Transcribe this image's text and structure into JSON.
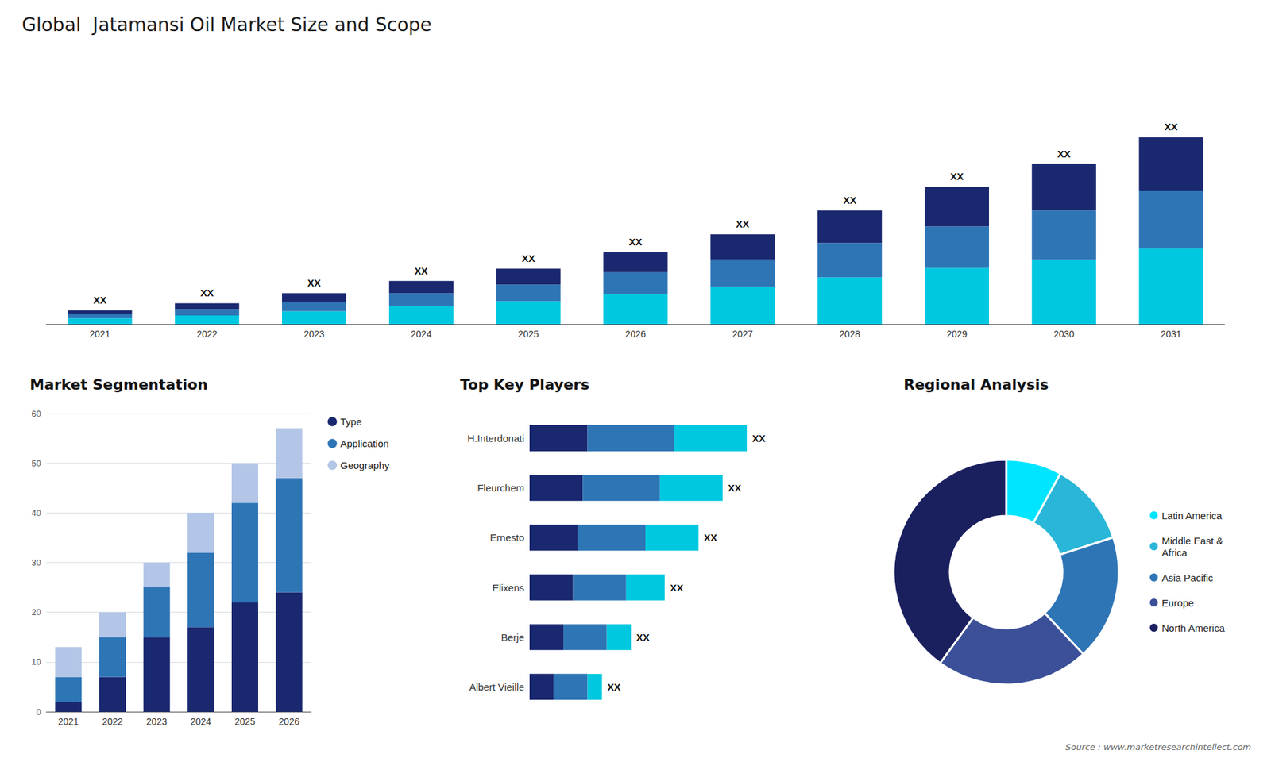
{
  "title": "Global  Jatamansi Oil Market Size and Scope",
  "source_text": "Source : www.marketresearchintellect.com",
  "chart_data": [
    {
      "type": "bar",
      "stacked": true,
      "categories": [
        "2021",
        "2022",
        "2023",
        "2024",
        "2025",
        "2026",
        "2027",
        "2028",
        "2029",
        "2030",
        "2031"
      ],
      "series": [
        {
          "color": "#00c8e0",
          "values": [
            0.8,
            1.2,
            1.8,
            2.5,
            3.2,
            4.2,
            5.2,
            6.5,
            7.8,
            9.0,
            10.5
          ]
        },
        {
          "color": "#2e75b6",
          "values": [
            0.6,
            0.9,
            1.3,
            1.8,
            2.3,
            3.0,
            3.8,
            4.8,
            5.8,
            6.8,
            8.0
          ]
        },
        {
          "color": "#1a2870",
          "values": [
            0.5,
            0.8,
            1.2,
            1.7,
            2.2,
            2.8,
            3.5,
            4.5,
            5.5,
            6.5,
            7.5
          ]
        }
      ],
      "annotations": [
        "XX",
        "XX",
        "XX",
        "XX",
        "XX",
        "XX",
        "XX",
        "XX",
        "XX",
        "XX",
        "XX"
      ],
      "ylim": [
        0,
        35.88
      ],
      "tick_labels": "x",
      "grid": false
    },
    {
      "type": "bar",
      "title": "Market Segmentation",
      "stacked": true,
      "categories": [
        "2021",
        "2022",
        "2023",
        "2024",
        "2025",
        "2026"
      ],
      "series": [
        {
          "name": "Type",
          "color": "#1a2870",
          "values": [
            2,
            7,
            15,
            17,
            22,
            24
          ]
        },
        {
          "name": "Application",
          "color": "#2e75b6",
          "values": [
            5,
            8,
            10,
            15,
            20,
            23
          ]
        },
        {
          "name": "Geography",
          "color": "#b3c6e7",
          "values": [
            6,
            5,
            5,
            8,
            8,
            10
          ]
        }
      ],
      "ylim": [
        0,
        60
      ],
      "yticks": [
        0,
        10,
        20,
        30,
        40,
        50,
        60
      ],
      "grid": true,
      "legend": "right"
    },
    {
      "type": "bar",
      "title": "Top Key Players",
      "orientation": "horizontal",
      "stacked": true,
      "categories": [
        "H.Interdonati",
        "Fleurchem",
        "Ernesto",
        "Elixens",
        "Berje",
        "Albert Vieille"
      ],
      "series": [
        {
          "color": "#1a2870",
          "values": [
            1.2,
            1.1,
            1.0,
            0.9,
            0.7,
            0.5
          ]
        },
        {
          "color": "#2e75b6",
          "values": [
            1.8,
            1.6,
            1.4,
            1.1,
            0.9,
            0.7
          ]
        },
        {
          "color": "#00c8e0",
          "values": [
            1.5,
            1.3,
            1.1,
            0.8,
            0.5,
            0.3
          ]
        }
      ],
      "annotations": [
        "XX",
        "XX",
        "XX",
        "XX",
        "XX",
        "XX"
      ],
      "xlim": [
        0,
        5.76
      ],
      "tick_labels": "y",
      "grid": false
    },
    {
      "type": "pie",
      "title": "Regional Analysis",
      "categories": [
        "Latin America",
        "Middle East &\nAfrica",
        "Asia Pacific",
        "Europe",
        "North America"
      ],
      "values": [
        8,
        12,
        18,
        22,
        40
      ],
      "colors": [
        "#00e5ff",
        "#29b6d8",
        "#2e75b6",
        "#3b5098",
        "#1a1f5e"
      ],
      "legend": "right"
    }
  ]
}
